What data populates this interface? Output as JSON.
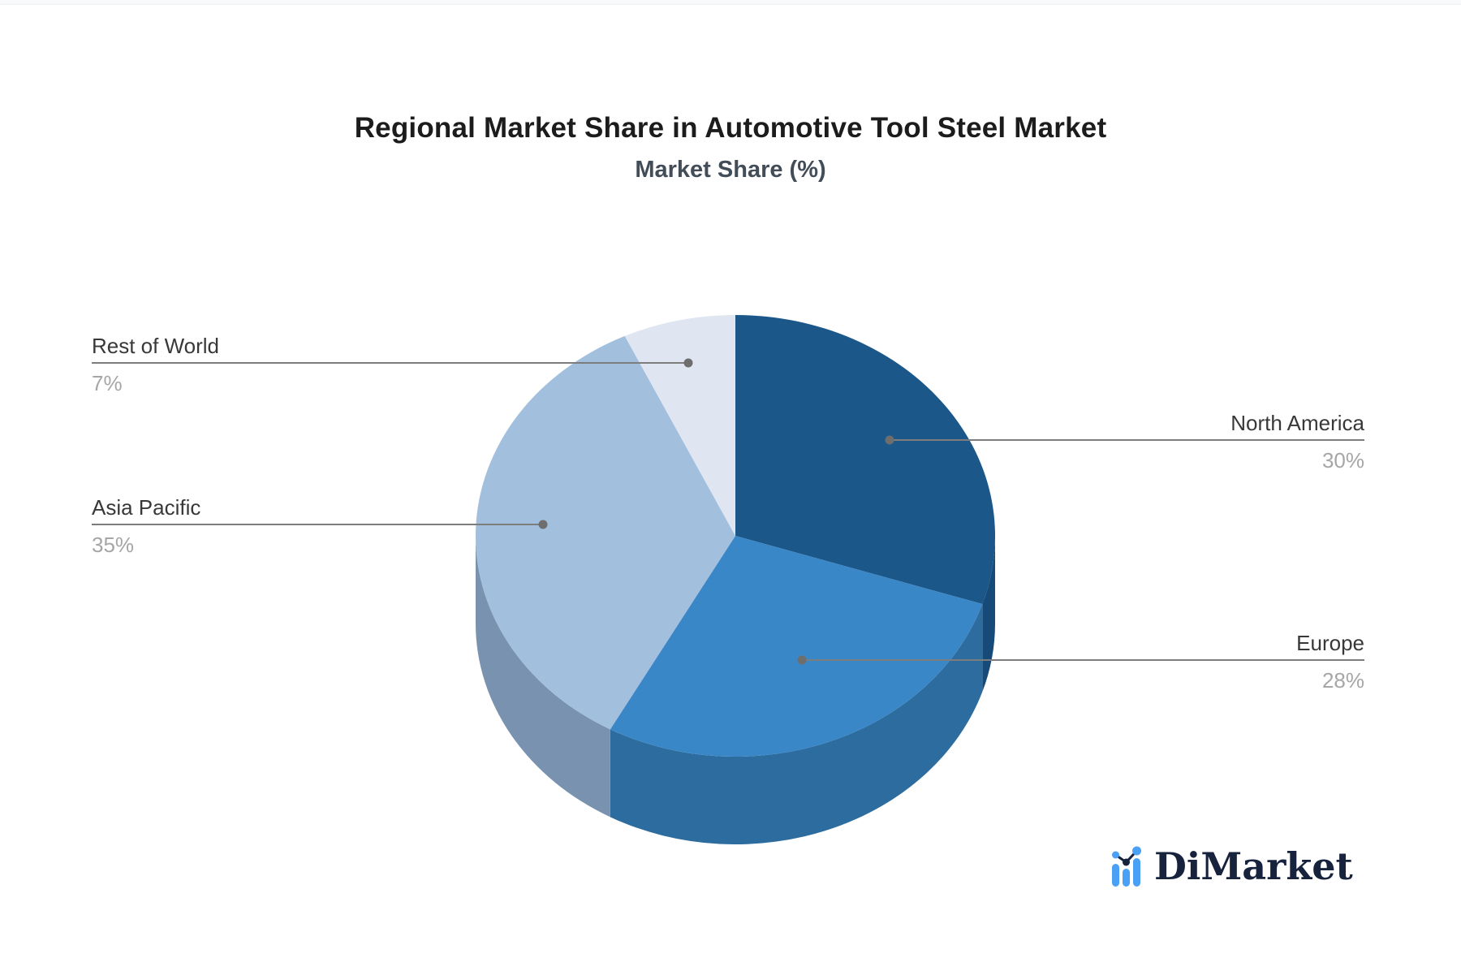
{
  "header": {
    "title": "Regional Market Share in Automotive Tool Steel Market",
    "subtitle": "Market Share (%)"
  },
  "chart_data": {
    "type": "pie",
    "style": "3d",
    "title": "Regional Market Share in Automotive Tool Steel Market",
    "subtitle": "Market Share (%)",
    "unit": "%",
    "start_angle_deg": -90,
    "direction": "clockwise",
    "legend_position": "none",
    "slices": [
      {
        "label": "North America",
        "value": 30,
        "display": "30%",
        "color": "#1b5789",
        "side_color": "#164b79",
        "label_side": "right"
      },
      {
        "label": "Europe",
        "value": 28,
        "display": "28%",
        "color": "#3a87c8",
        "side_color": "#2d6c9e",
        "label_side": "right"
      },
      {
        "label": "Asia Pacific",
        "value": 35,
        "display": "35%",
        "color": "#a2bfde",
        "side_color": "#7892b0",
        "label_side": "left"
      },
      {
        "label": "Rest of World",
        "value": 7,
        "display": "7%",
        "color": "#dfe6f1",
        "side_color": "#bac7d9",
        "label_side": "left"
      }
    ],
    "leader_line_color": "#7d7d7d",
    "leader_dot_color": "#6e6e6e",
    "label_color": "#383838",
    "percent_color": "#a6a6a6",
    "title_color": "#1c1c1c",
    "subtitle_color": "#424d58"
  },
  "branding": {
    "logo_text": "DiMarket",
    "logo_accent": "#4aa0f4",
    "logo_dark": "#17233d"
  }
}
